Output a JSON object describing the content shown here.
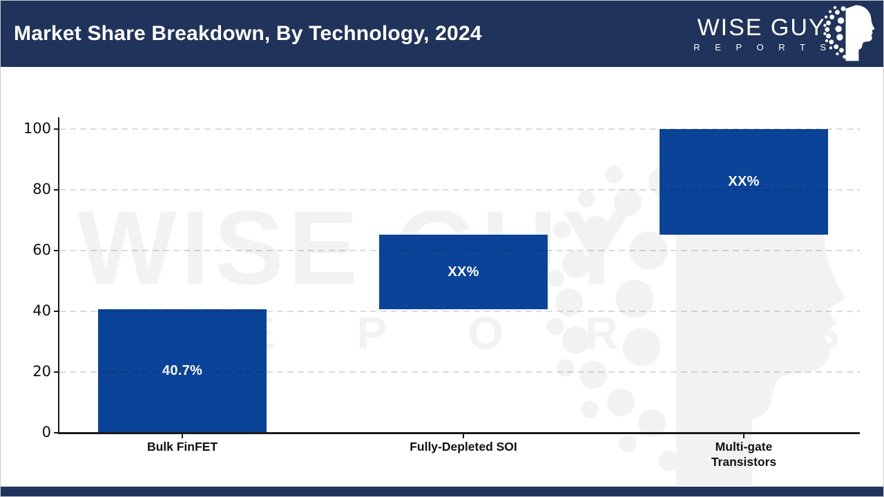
{
  "header": {
    "title": "Market Share Breakdown, By Technology, 2024",
    "brand": {
      "line1": "WISE GUY",
      "line2": "R E P O R T S"
    }
  },
  "watermark": {
    "line1": "WISE GUY",
    "line2": "R E P O R T S"
  },
  "colors": {
    "header_bg": "#20335a",
    "footer_bg": "#20335a",
    "bar": "#0a4397",
    "bar_label": "#ffffff",
    "gridline": "#d9d9d9",
    "axis": "#1a1a1a",
    "watermark": "#f2f2f2"
  },
  "chart_data": {
    "type": "bar",
    "variant": "floating-segment",
    "title": "Market Share Breakdown, By Technology, 2024",
    "categories": [
      "Bulk FinFET",
      "Fully-Depleted SOI",
      "Multi-gate Transistors"
    ],
    "segments": [
      {
        "category": "Bulk FinFET",
        "start": 0,
        "end": 40.7,
        "label": "40.7%"
      },
      {
        "category": "Fully-Depleted SOI",
        "start": 40.7,
        "end": 65.2,
        "label": "XX%"
      },
      {
        "category": "Multi-gate Transistors",
        "start": 65.2,
        "end": 100,
        "label": "XX%"
      }
    ],
    "ylim": [
      0,
      100
    ],
    "yticks": [
      0,
      20,
      40,
      60,
      80,
      100
    ],
    "grid": "horizontal-dashed",
    "legend": "none"
  }
}
